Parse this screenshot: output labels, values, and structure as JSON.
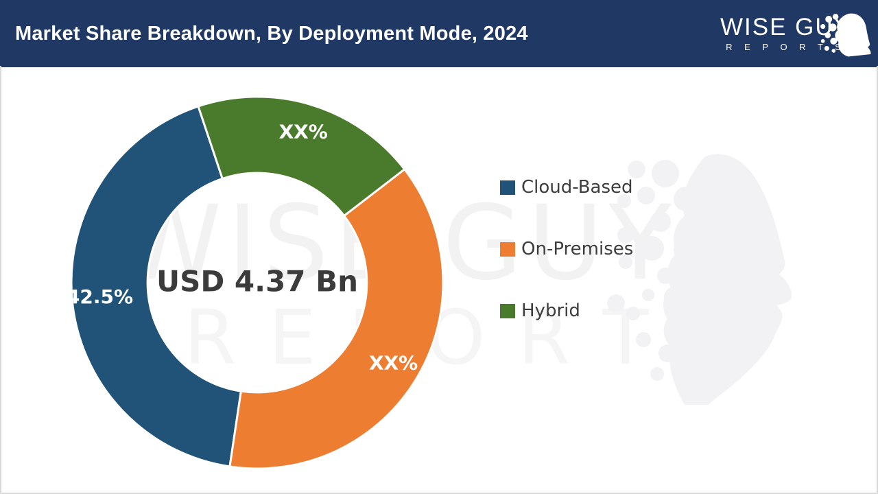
{
  "header": {
    "title": "Market Share Breakdown, By Deployment Mode, 2024",
    "logo": {
      "line1": "WISE GUY",
      "line2": "R E P O R T S"
    }
  },
  "watermark": {
    "line1": "WISE GUY",
    "line2": "R E P O R T S"
  },
  "chart_data": {
    "type": "pie",
    "subtype": "donut",
    "title": "Market Share Breakdown, By Deployment Mode, 2024",
    "center_label": "USD 4.37 Bn",
    "start_angle_deg": 108.5,
    "direction": "counterclockwise",
    "inner_radius_ratio": 0.59,
    "legend_position": "right",
    "series": [
      {
        "name": "Cloud-Based",
        "display_label": "42.5%",
        "value": 42.5,
        "color": "#205377"
      },
      {
        "name": "On-Premises",
        "display_label": "XX%",
        "value": 37.8,
        "color": "#ED7D31"
      },
      {
        "name": "Hybrid",
        "display_label": "XX%",
        "value": 19.7,
        "color": "#4A7A2B"
      }
    ]
  },
  "colors": {
    "header_bg": "#203864",
    "center_text": "#3B3B3B",
    "legend_text": "#3D3D3D",
    "slice_label": "#FFFFFF",
    "slice_gap": "#FFFFFF",
    "watermark": "#F2F2F4",
    "border": "#D9D9D9"
  }
}
